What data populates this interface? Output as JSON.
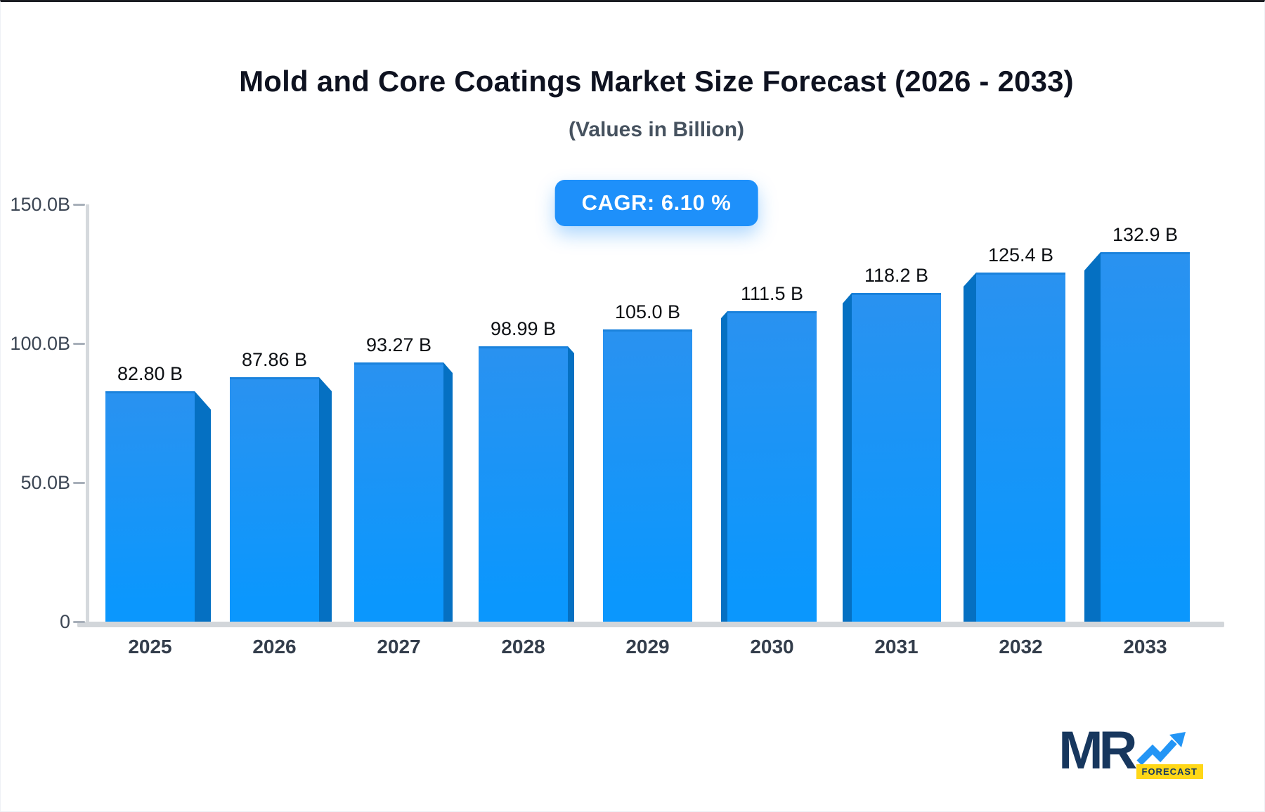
{
  "header": {
    "title": "Mold and Core Coatings Market Size Forecast (2026 - 2033)",
    "subtitle": "(Values in Billion)",
    "cagr_label": "CAGR: 6.10 %"
  },
  "chart_data": {
    "type": "bar",
    "title": "Mold and Core Coatings Market Size Forecast (2026 - 2033)",
    "subtitle": "(Values in Billion)",
    "cagr": "6.10%",
    "categories": [
      "2025",
      "2026",
      "2027",
      "2028",
      "2029",
      "2030",
      "2031",
      "2032",
      "2033"
    ],
    "values": [
      82.8,
      87.86,
      93.27,
      98.99,
      105.0,
      111.5,
      118.2,
      125.4,
      132.9
    ],
    "value_labels": [
      "82.80 B",
      "87.86 B",
      "93.27 B",
      "98.99 B",
      "105.0 B",
      "111.5 B",
      "118.2 B",
      "125.4 B",
      "132.9 B"
    ],
    "xlabel": "",
    "ylabel": "",
    "ylim": [
      0,
      150
    ],
    "yticks": [
      {
        "value": 0,
        "label": "0"
      },
      {
        "value": 50,
        "label": "50.0B"
      },
      {
        "value": 100,
        "label": "100.0B"
      },
      {
        "value": 150,
        "label": "150.0B"
      }
    ],
    "grid": false,
    "legend": "none",
    "colors": {
      "accent": "#1e90fa",
      "bar_face_top": "#2a92f0",
      "bar_face_bottom": "#0b97fd",
      "bar_side": "#0570c2",
      "axis_line": "#d5d9dd",
      "label_text": "#0c0f13"
    }
  },
  "logo": {
    "text": "MR",
    "sub": "FORECAST",
    "navy": "#17375e",
    "yellow": "#ffd717",
    "arrow_blue": "#2395f5"
  }
}
